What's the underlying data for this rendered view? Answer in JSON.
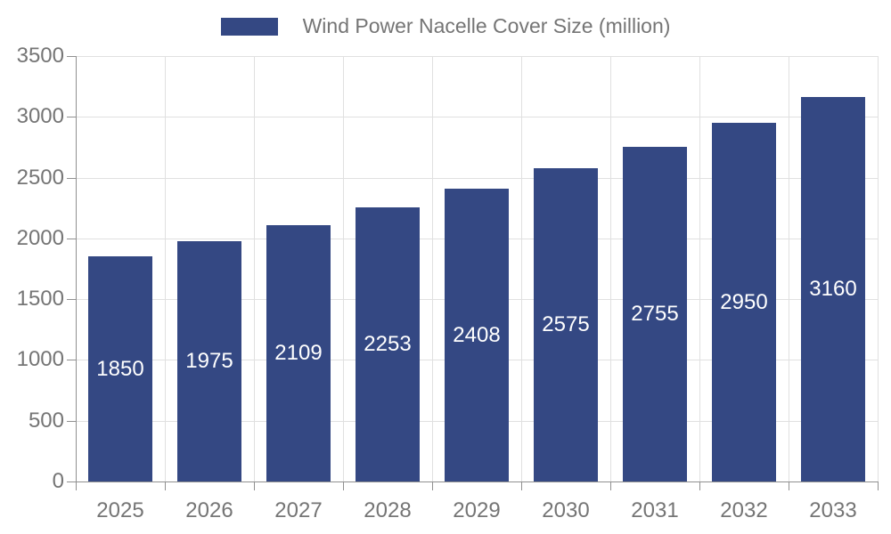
{
  "legend": {
    "label": "Wind Power Nacelle Cover Size (million)"
  },
  "chart_data": {
    "type": "bar",
    "title": "Wind Power Nacelle Cover Size (million)",
    "categories": [
      "2025",
      "2026",
      "2027",
      "2028",
      "2029",
      "2030",
      "2031",
      "2032",
      "2033"
    ],
    "values": [
      1850,
      1975,
      2109,
      2253,
      2408,
      2575,
      2755,
      2950,
      3160
    ],
    "xlabel": "",
    "ylabel": "",
    "ylim": [
      0,
      3500
    ],
    "yticks": [
      0,
      500,
      1000,
      1500,
      2000,
      2500,
      3000,
      3500
    ],
    "grid": true,
    "legend_position": "top-center",
    "value_labels": "inside-middle",
    "colors": {
      "bar": "#344883",
      "grid": "#e0e0e0",
      "axis": "#909090",
      "tick_label": "#757575",
      "legend_text": "#757575",
      "value_label": "#ffffff",
      "background": "#ffffff"
    }
  }
}
